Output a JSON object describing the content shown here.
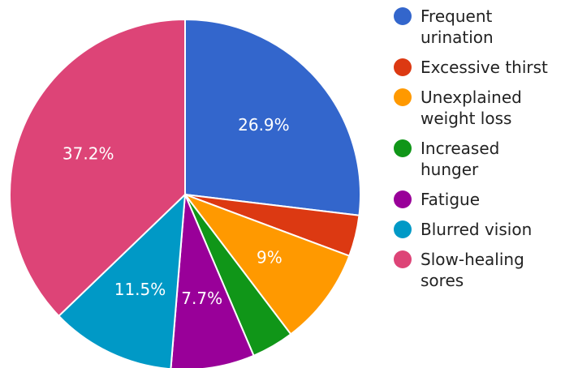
{
  "chart_data": {
    "type": "pie",
    "title": "",
    "legend_position": "right",
    "start_angle_deg": 0,
    "direction": "clockwise",
    "slices": [
      {
        "label": "Frequent urination",
        "legend_lines": [
          "Frequent",
          "urination"
        ],
        "value": 26.9,
        "display": "26.9%",
        "color": "#3366cc"
      },
      {
        "label": "Excessive thirst",
        "legend_lines": [
          "Excessive thirst"
        ],
        "value": 3.8,
        "display": "",
        "color": "#dc3912"
      },
      {
        "label": "Unexplained weight loss",
        "legend_lines": [
          "Unexplained",
          "weight loss"
        ],
        "value": 9,
        "display": "9%",
        "color": "#ff9900"
      },
      {
        "label": "Increased hunger",
        "legend_lines": [
          "Increased",
          "hunger"
        ],
        "value": 3.9,
        "display": "",
        "color": "#109618"
      },
      {
        "label": "Fatigue",
        "legend_lines": [
          "Fatigue"
        ],
        "value": 7.7,
        "display": "7.7%",
        "color": "#990099"
      },
      {
        "label": "Blurred vision",
        "legend_lines": [
          "Blurred vision"
        ],
        "value": 11.5,
        "display": "11.5%",
        "color": "#0099c6"
      },
      {
        "label": "Slow-healing sores",
        "legend_lines": [
          "Slow-healing",
          "sores"
        ],
        "value": 37.2,
        "display": "37.2%",
        "color": "#dd4477"
      }
    ]
  }
}
